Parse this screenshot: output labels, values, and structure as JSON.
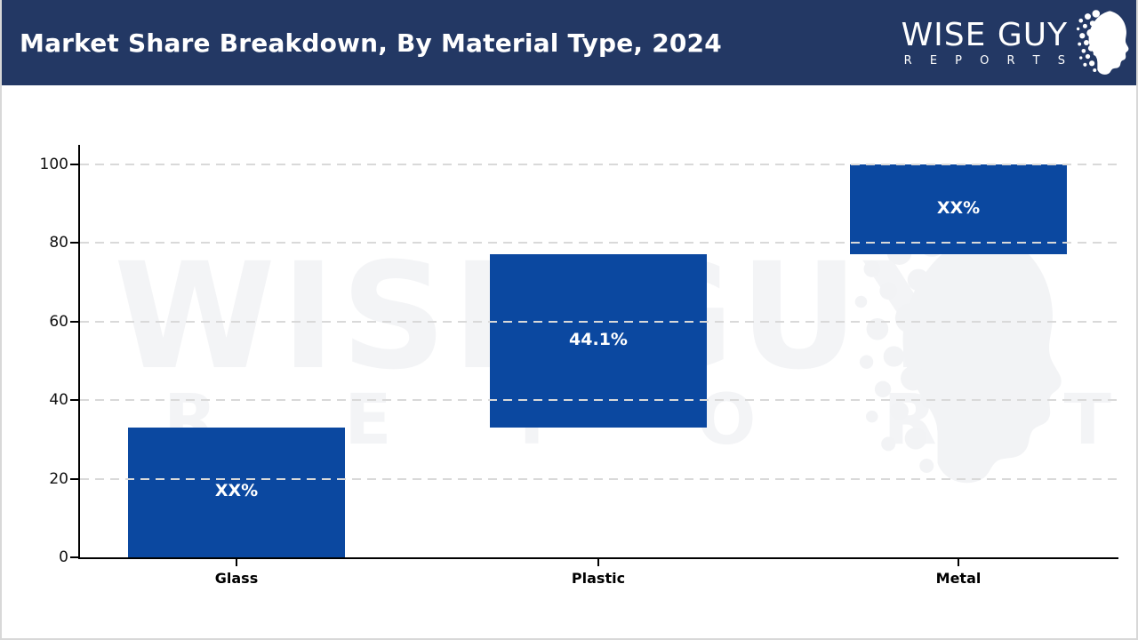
{
  "page": {
    "background": "#ffffff",
    "edge_border_color": "#d8d8d8"
  },
  "header": {
    "bg_color": "#233864",
    "title": "Market Share Breakdown, By Material Type, 2024",
    "title_color": "#ffffff",
    "logo": {
      "wordmark": "WISE GUY",
      "subtext": "R E P O R T S",
      "face_icon": "dotted-face-profile",
      "color": "#ffffff"
    }
  },
  "watermark": {
    "wordmark": "WISE GUY",
    "subtext": "R E P O R T S",
    "face_icon": "dotted-face-profile",
    "color": "#f3f4f6"
  },
  "chart_data": {
    "type": "bar",
    "subtype": "waterfall-floating-segments",
    "title": "Market Share Breakdown, By Material Type, 2024",
    "categories": [
      "Glass",
      "Plastic",
      "Metal"
    ],
    "segments": [
      [
        0,
        33
      ],
      [
        33,
        77.1
      ],
      [
        77.1,
        100
      ]
    ],
    "segment_heights": [
      33,
      44.1,
      22.9
    ],
    "bar_labels": [
      "XX%",
      "44.1%",
      "XX%"
    ],
    "yticks": [
      0,
      20,
      40,
      60,
      80,
      100
    ],
    "ylim": [
      0,
      105
    ],
    "xlabel": "",
    "ylabel": "",
    "legend": "none",
    "grid": {
      "horizontal": true,
      "style": "dashed",
      "color": "#d9d9d9",
      "drawn_over_bars": true
    },
    "colors": {
      "bar": "#0b48a0",
      "bar_label": "#ffffff",
      "axis": "#000000",
      "tick_label": "#111111"
    }
  }
}
